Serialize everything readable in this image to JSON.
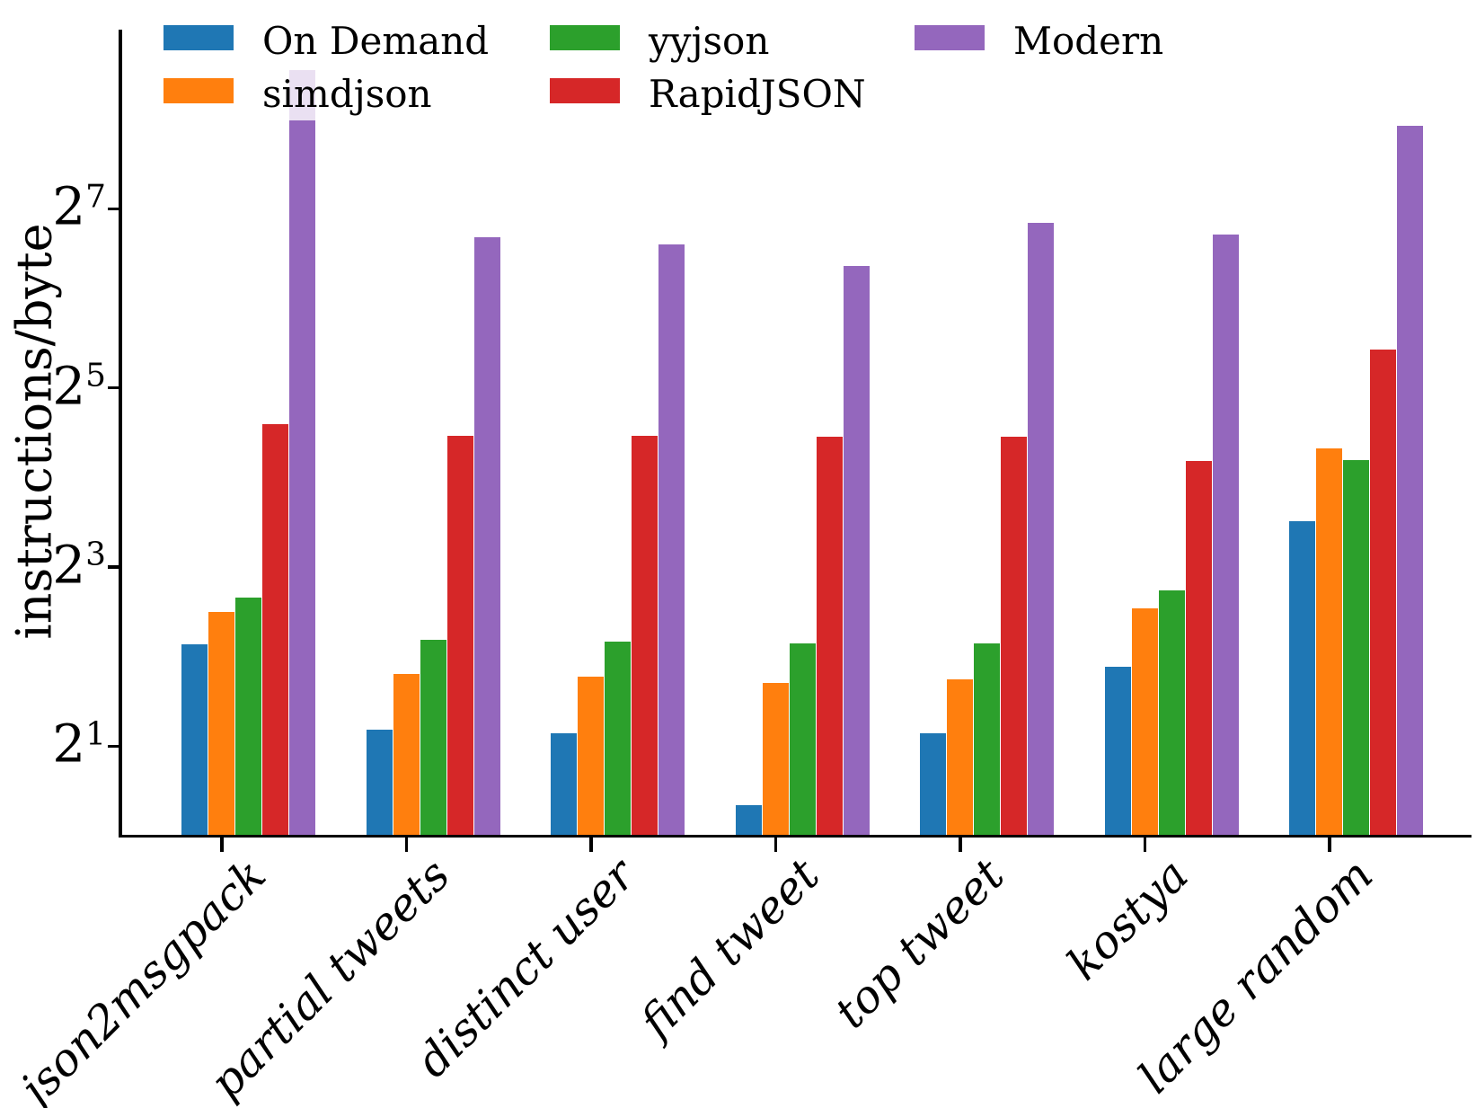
{
  "chart_data": {
    "type": "bar",
    "title": "",
    "xlabel": "",
    "ylabel": "instructions/byte",
    "yscale": "log2",
    "ylim_exponents": [
      0,
      9
    ],
    "ytick_base": "2",
    "ytick_exponents": [
      1,
      3,
      5,
      7
    ],
    "grid": false,
    "categories": [
      "json2msgpack",
      "partial tweets",
      "distinct user",
      "find tweet",
      "top tweet",
      "kostya",
      "large random"
    ],
    "series": [
      {
        "name": "On Demand",
        "color": "#1f77b4",
        "values": [
          4.4,
          2.28,
          2.21,
          1.27,
          2.21,
          3.69,
          11.4
        ]
      },
      {
        "name": "simdjson",
        "color": "#ff7f0e",
        "values": [
          5.65,
          3.5,
          3.42,
          3.26,
          3.35,
          5.83,
          20.0
        ]
      },
      {
        "name": "yyjson",
        "color": "#2ca02c",
        "values": [
          6.3,
          4.55,
          4.5,
          4.42,
          4.44,
          6.66,
          18.3
        ]
      },
      {
        "name": "RapidJSON",
        "color": "#d62728",
        "values": [
          24.2,
          22.1,
          22.1,
          22.0,
          22.0,
          18.2,
          43.2
        ]
      },
      {
        "name": "Modern",
        "color": "#9467bd",
        "values": [
          375,
          103,
          97.5,
          82,
          115,
          105,
          243
        ]
      }
    ],
    "legend": {
      "position": "upper left",
      "columns": 3,
      "background_color": "#ffffff",
      "background_alpha": 0.8,
      "labels": [
        "On Demand",
        "simdjson",
        "yyjson",
        "RapidJSON",
        "Modern"
      ]
    },
    "axis_color": "#000000",
    "background_color": "#ffffff"
  }
}
